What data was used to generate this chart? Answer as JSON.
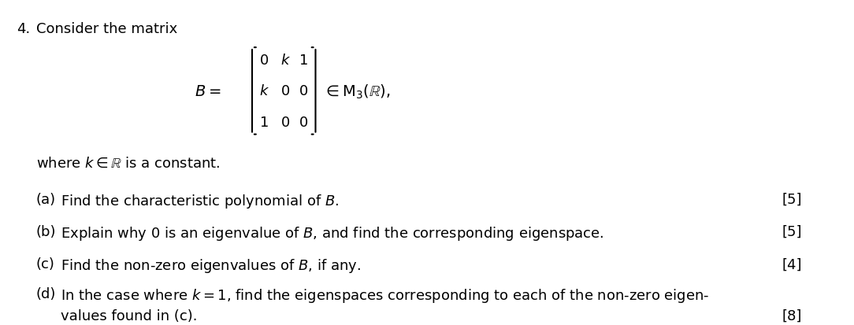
{
  "background_color": "#ffffff",
  "question_number": "4.",
  "question_intro": "Consider the matrix",
  "matrix_label": "B =",
  "matrix_rows": [
    [
      "0",
      "k",
      "1"
    ],
    [
      "k",
      "0",
      "0"
    ],
    [
      "1",
      "0",
      "0"
    ]
  ],
  "matrix_set": "\\in M_3(\\mathbb{R}),",
  "where_text": "where $k \\in \\mathbb{R}$ is a constant.",
  "parts": [
    {
      "label": "(a)",
      "text": "Find the characteristic polynomial of $B$.",
      "marks": "[5]"
    },
    {
      "label": "(b)",
      "text": "Explain why $0$ is an eigenvalue of $B$, and find the corresponding eigenspace.",
      "marks": "[5]"
    },
    {
      "label": "(c)",
      "text": "Find the non-zero eigenvalues of $B$, if any.",
      "marks": "[4]"
    },
    {
      "label": "(d)",
      "text_line1": "In the case where $k = 1$, find the eigenspaces corresponding to each of the non-zero eigen-",
      "text_line2": "values found in (c).",
      "marks": "[8]"
    }
  ],
  "font_size_main": 13,
  "font_size_marks": 13,
  "text_color": "#000000"
}
